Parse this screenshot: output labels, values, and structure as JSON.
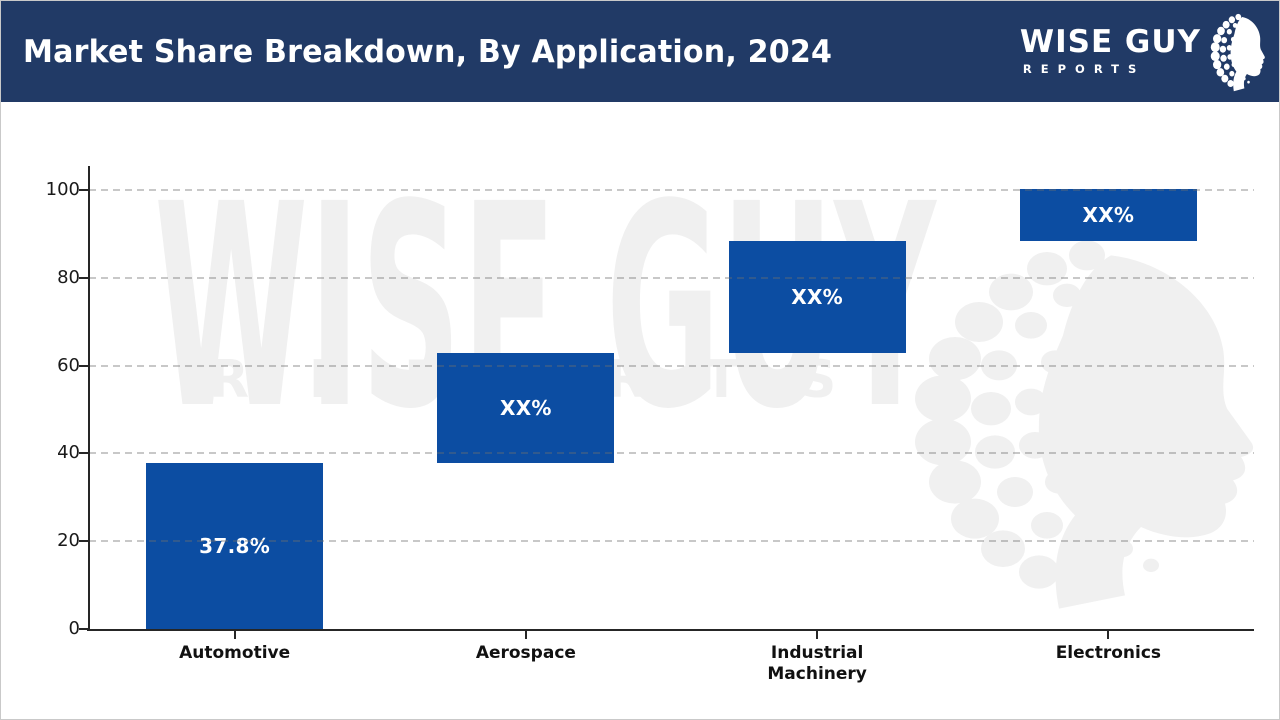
{
  "header": {
    "title": "Market Share Breakdown, By Application, 2024",
    "logo": {
      "line1": "WISE GUY",
      "line2": "REPORTS"
    }
  },
  "watermark": {
    "line1": "WISE GUY",
    "line2": "REPORTS"
  },
  "chart_data": {
    "type": "bar",
    "subtype": "waterfall",
    "title": "Market Share Breakdown, By Application, 2024",
    "categories": [
      "Automotive",
      "Aerospace",
      "Industrial Machinery",
      "Electronics"
    ],
    "segments": [
      {
        "category": "Automotive",
        "start": 0,
        "end": 37.8,
        "label": "37.8%"
      },
      {
        "category": "Aerospace",
        "start": 37.8,
        "end": 63.0,
        "label": "XX%"
      },
      {
        "category": "Industrial Machinery",
        "start": 63.0,
        "end": 88.4,
        "label": "XX%"
      },
      {
        "category": "Electronics",
        "start": 88.4,
        "end": 100.2,
        "label": "XX%"
      }
    ],
    "xlabel": "",
    "ylabel": "",
    "ylim": [
      0,
      105.5
    ],
    "yticks": [
      0,
      20,
      40,
      60,
      80,
      100
    ],
    "grid": "horizontal-dashed",
    "legend": "none",
    "bar_color": "#0c4da2",
    "bar_label_color": "#ffffff"
  },
  "colors": {
    "header_bg": "#213a66",
    "bar": "#0c4da2",
    "axis": "#262626",
    "watermark": "#f0f0f0"
  }
}
